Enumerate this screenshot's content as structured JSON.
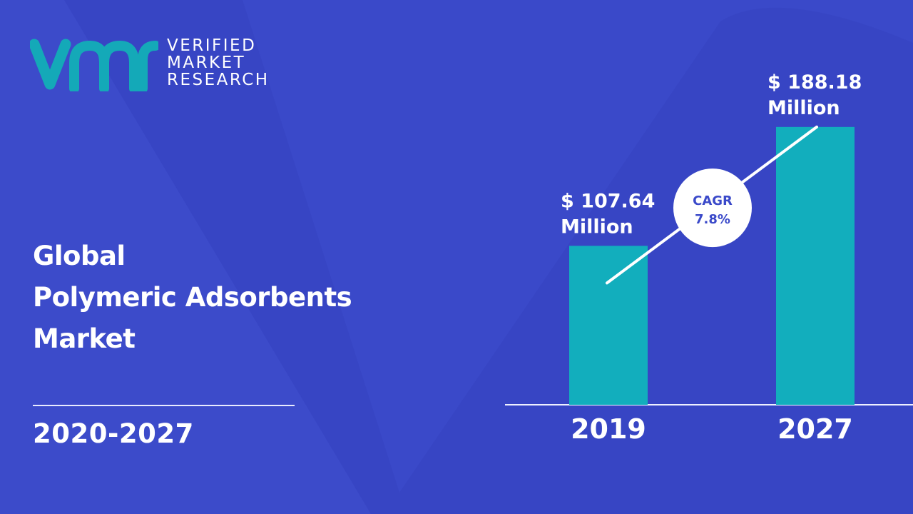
{
  "brand": {
    "logo_mark": "vmr",
    "line1": "VERIFIED",
    "line2": "MARKET",
    "line3": "RESEARCH"
  },
  "title": {
    "line1": "Global",
    "line2": "Polymeric Adsorbents",
    "line3": "Market"
  },
  "period": "2020-2027",
  "colors": {
    "background": "#3a49c9",
    "bar": "#12aebd",
    "logo": "#14a9b8",
    "cagr_text": "#3a49c9"
  },
  "chart_data": {
    "type": "bar",
    "categories": [
      "2019",
      "2027"
    ],
    "values": [
      107.64,
      188.18
    ],
    "value_labels": [
      [
        "$ 107.64",
        "Million"
      ],
      [
        "$ 188.18",
        "Million"
      ]
    ],
    "cagr_label": "CAGR",
    "cagr_value": "7.8%",
    "ylim": [
      0,
      250
    ],
    "grid": false,
    "legend": "none"
  }
}
